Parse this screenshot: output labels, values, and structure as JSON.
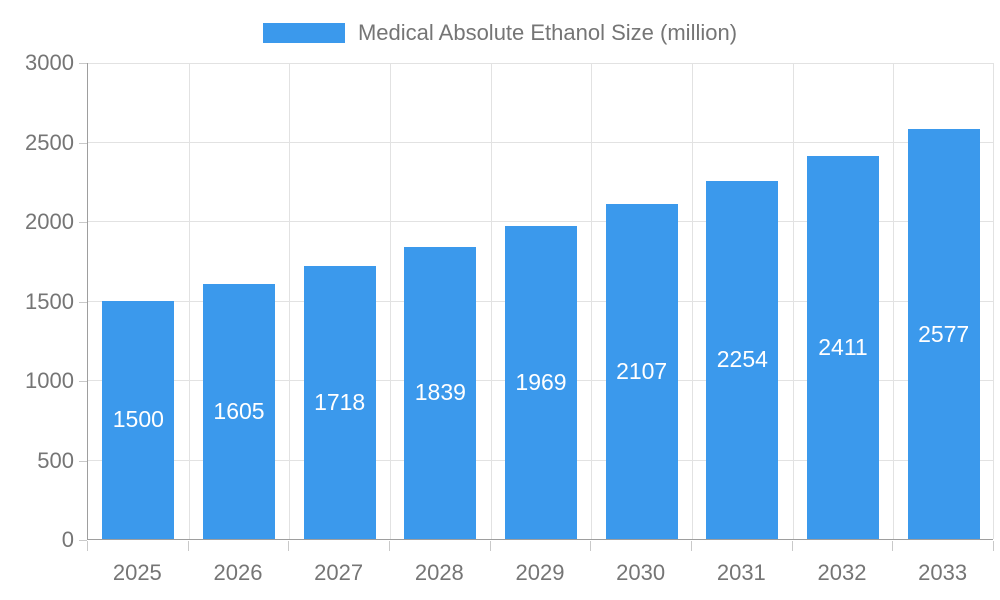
{
  "legend": {
    "label": "Medical Absolute Ethanol Size (million)"
  },
  "colors": {
    "bar": "#3B99EC",
    "axis_text": "#757575",
    "gridline": "#E2E2E2",
    "axis_line": "#9E9E9E",
    "tick": "#C9C9C9",
    "bar_label": "#FFFFFF",
    "background": "#FFFFFF"
  },
  "chart_data": {
    "type": "bar",
    "title": "Medical Absolute Ethanol Size (million)",
    "categories": [
      "2025",
      "2026",
      "2027",
      "2028",
      "2029",
      "2030",
      "2031",
      "2032",
      "2033"
    ],
    "values": [
      1500,
      1605,
      1718,
      1839,
      1969,
      2107,
      2254,
      2411,
      2577
    ],
    "xlabel": "",
    "ylabel": "",
    "ylim": [
      0,
      3000
    ],
    "yticks": [
      0,
      500,
      1000,
      1500,
      2000,
      2500,
      3000
    ],
    "grid": true,
    "legend_position": "top",
    "bar_label_position": "inside-center"
  }
}
